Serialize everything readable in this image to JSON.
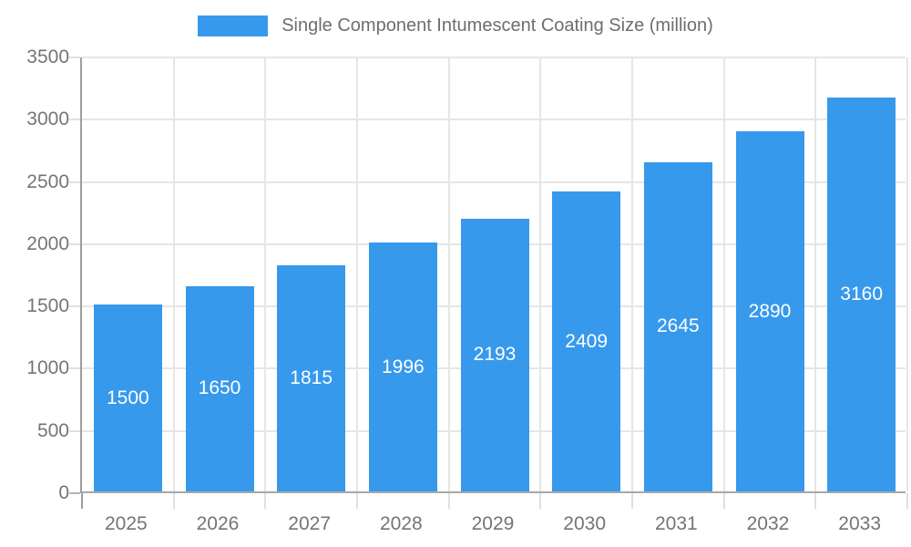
{
  "legend": {
    "label": "Single Component Intumescent Coating Size (million)"
  },
  "chart_data": {
    "type": "bar",
    "title": "Single Component Intumescent Coating Size (million)",
    "categories": [
      "2025",
      "2026",
      "2027",
      "2028",
      "2029",
      "2030",
      "2031",
      "2032",
      "2033"
    ],
    "values": [
      1500,
      1650,
      1815,
      1996,
      2193,
      2409,
      2645,
      2890,
      3160
    ],
    "series": [
      {
        "name": "Single Component Intumescent Coating Size (million)",
        "values": [
          1500,
          1650,
          1815,
          1996,
          2193,
          2409,
          2645,
          2890,
          3160
        ]
      }
    ],
    "xlabel": "",
    "ylabel": "",
    "ylim": [
      0,
      3500
    ],
    "yticks": [
      0,
      500,
      1000,
      1500,
      2000,
      2500,
      3000,
      3500
    ],
    "grid": true,
    "legend_position": "top-center",
    "value_labels": "inside-center",
    "colors": {
      "bar": "#3799EC",
      "value_label": "#ffffff",
      "axis_line": "#9e9e9e",
      "gridline": "#e6e6e6",
      "tick": "#e0e0e0",
      "axis_text": "#757575",
      "legend_text": "#6e6e6e",
      "background": "#ffffff"
    }
  }
}
